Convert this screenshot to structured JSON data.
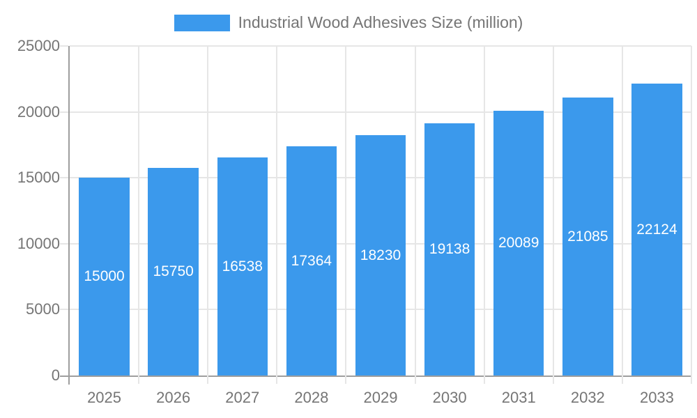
{
  "chart_data": {
    "type": "bar",
    "title": "Industrial Wood Adhesives Size (million)",
    "legend": [
      "Industrial Wood Adhesives Size (million)"
    ],
    "legend_position": "top",
    "categories": [
      "2025",
      "2026",
      "2027",
      "2028",
      "2029",
      "2030",
      "2031",
      "2032",
      "2033"
    ],
    "series": [
      {
        "name": "Industrial Wood Adhesives Size (million)",
        "values": [
          15000,
          15750,
          16538,
          17364,
          18230,
          19138,
          20089,
          21085,
          22124
        ]
      }
    ],
    "bar_labels": [
      "15000",
      "15750",
      "16538",
      "17364",
      "18230",
      "19138",
      "20089",
      "21085",
      "22124"
    ],
    "xlabel": "",
    "ylabel": "",
    "ylim": [
      0,
      25000
    ],
    "yticks": [
      0,
      5000,
      10000,
      15000,
      20000,
      25000
    ],
    "grid": true,
    "colors": {
      "bar": "#3B99EC",
      "bar_label": "#FFFFFF",
      "axis_line": "#9E9E9E",
      "grid_line": "#E6E6E6",
      "tick_label": "#757575",
      "background": "#FFFFFF"
    }
  }
}
